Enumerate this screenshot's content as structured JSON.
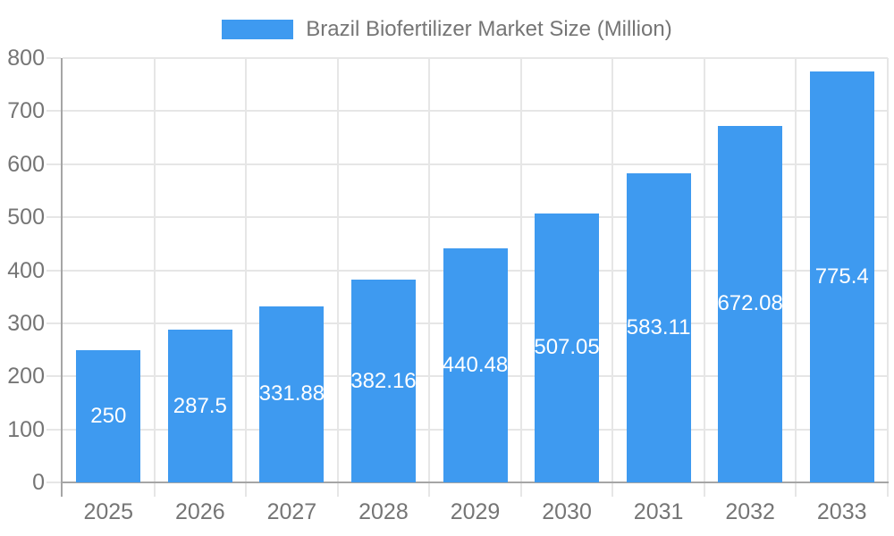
{
  "chart_data": {
    "type": "bar",
    "title": "",
    "series_name": "Brazil Biofertilizer Market Size (Million)",
    "categories": [
      "2025",
      "2026",
      "2027",
      "2028",
      "2029",
      "2030",
      "2031",
      "2032",
      "2033"
    ],
    "values": [
      250,
      287.5,
      331.88,
      382.16,
      440.48,
      507.05,
      583.11,
      672.08,
      775.4
    ],
    "value_labels": [
      "250",
      "287.5",
      "331.88",
      "382.16",
      "440.48",
      "507.05",
      "583.11",
      "672.08",
      "775.4"
    ],
    "xlabel": "",
    "ylabel": "",
    "ylim": [
      0,
      800
    ],
    "ytick_interval": 100,
    "yticks": [
      0,
      100,
      200,
      300,
      400,
      500,
      600,
      700,
      800
    ],
    "grid": "horizontal and vertical gridlines",
    "legend_position": "top-center",
    "value_label_position": "centered inside bar",
    "colors": {
      "bar": "#3E9AF0",
      "axis": "#A5A5A5",
      "grid": "#E6E6E6",
      "axis_label": "#757575",
      "value_label": "#FFFFFF",
      "background": "#FFFFFF"
    }
  }
}
